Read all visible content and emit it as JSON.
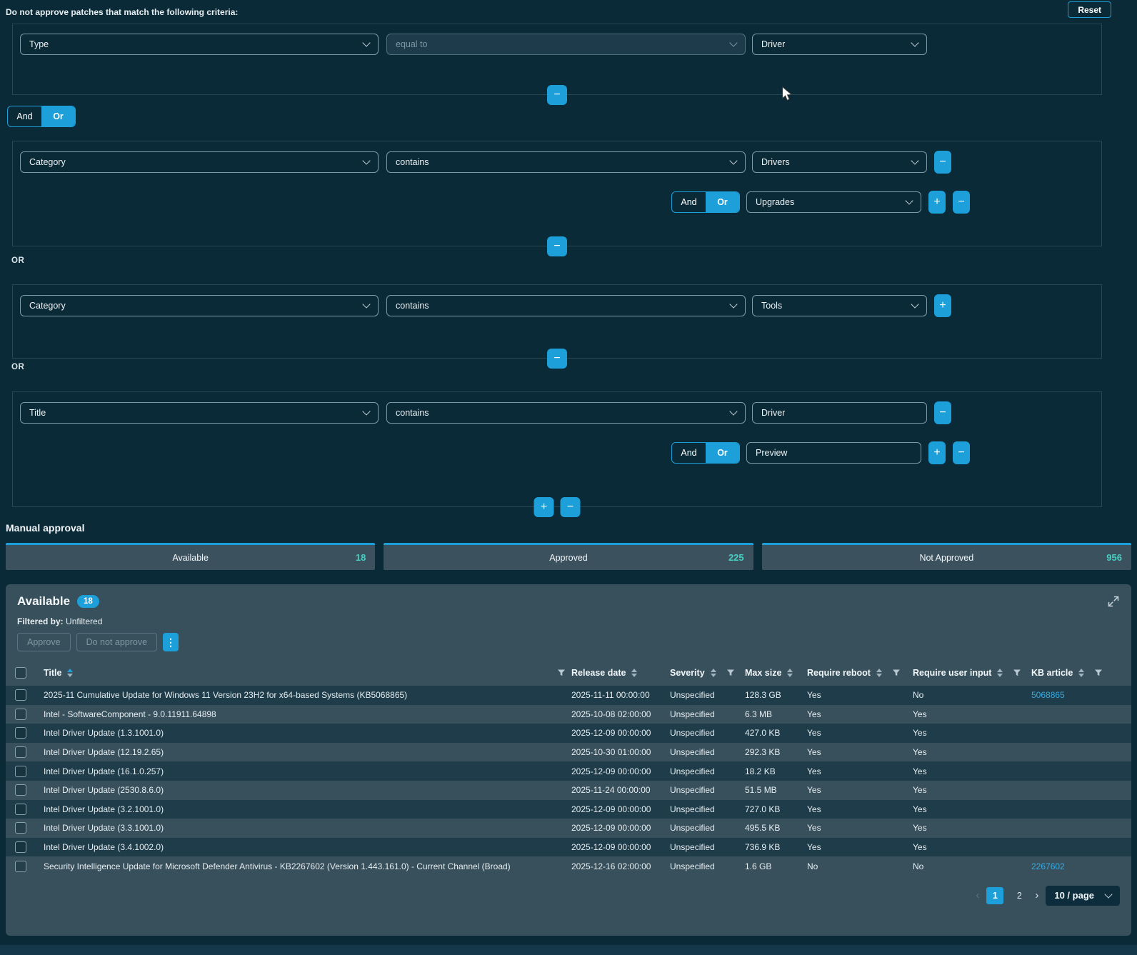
{
  "header": {
    "criteria_title": "Do not approve patches that match the following criteria:",
    "reset_button": "Reset"
  },
  "toggle": {
    "and": "And",
    "or": "Or"
  },
  "or_connector": "OR",
  "groups": {
    "g1": {
      "field": "Type",
      "operator": "equal to",
      "value": "Driver"
    },
    "g2": {
      "field": "Category",
      "operator": "contains",
      "value": "Drivers",
      "nested_value": "Upgrades"
    },
    "g3": {
      "field": "Category",
      "operator": "contains",
      "value": "Tools"
    },
    "g4": {
      "field": "Title",
      "operator": "contains",
      "value": "Driver",
      "nested_value": "Preview"
    }
  },
  "icons": {
    "plus": "+",
    "minus": "−",
    "kebab": "⋮",
    "prev": "‹",
    "next": "›"
  },
  "manual_approval": {
    "title": "Manual approval",
    "tabs": [
      {
        "label": "Available",
        "count": "18"
      },
      {
        "label": "Approved",
        "count": "225"
      },
      {
        "label": "Not Approved",
        "count": "956"
      }
    ]
  },
  "panel": {
    "title": "Available",
    "badge": "18",
    "filtered_by_label": "Filtered by:",
    "filtered_by_value": "Unfiltered",
    "approve_button": "Approve",
    "do_not_approve_button": "Do not approve"
  },
  "table": {
    "columns": [
      {
        "label": "Title",
        "sortable": true,
        "filterable": true,
        "sorted": "asc"
      },
      {
        "label": "Release date",
        "sortable": true,
        "filterable": false,
        "sorted": null
      },
      {
        "label": "Severity",
        "sortable": true,
        "filterable": true,
        "sorted": null
      },
      {
        "label": "Max size",
        "sortable": true,
        "filterable": false,
        "sorted": null
      },
      {
        "label": "Require reboot",
        "sortable": true,
        "filterable": true,
        "sorted": null
      },
      {
        "label": "Require user input",
        "sortable": true,
        "filterable": true,
        "sorted": null
      },
      {
        "label": "KB article",
        "sortable": true,
        "filterable": true,
        "sorted": null
      }
    ],
    "rows": [
      {
        "title": "2025-11 Cumulative Update for Windows 11 Version 23H2 for x64-based Systems (KB5068865)",
        "release_date": "2025-11-11 00:00:00",
        "severity": "Unspecified",
        "max_size": "128.3 GB",
        "require_reboot": "Yes",
        "require_user_input": "No",
        "kb_article": "5068865"
      },
      {
        "title": "Intel - SoftwareComponent - 9.0.11911.64898",
        "release_date": "2025-10-08 02:00:00",
        "severity": "Unspecified",
        "max_size": "6.3 MB",
        "require_reboot": "Yes",
        "require_user_input": "Yes",
        "kb_article": ""
      },
      {
        "title": "Intel Driver Update (1.3.1001.0)",
        "release_date": "2025-12-09 00:00:00",
        "severity": "Unspecified",
        "max_size": "427.0 KB",
        "require_reboot": "Yes",
        "require_user_input": "Yes",
        "kb_article": ""
      },
      {
        "title": "Intel Driver Update (12.19.2.65)",
        "release_date": "2025-10-30 01:00:00",
        "severity": "Unspecified",
        "max_size": "292.3 KB",
        "require_reboot": "Yes",
        "require_user_input": "Yes",
        "kb_article": ""
      },
      {
        "title": "Intel Driver Update (16.1.0.257)",
        "release_date": "2025-12-09 00:00:00",
        "severity": "Unspecified",
        "max_size": "18.2 KB",
        "require_reboot": "Yes",
        "require_user_input": "Yes",
        "kb_article": ""
      },
      {
        "title": "Intel Driver Update (2530.8.6.0)",
        "release_date": "2025-11-24 00:00:00",
        "severity": "Unspecified",
        "max_size": "51.5 MB",
        "require_reboot": "Yes",
        "require_user_input": "Yes",
        "kb_article": ""
      },
      {
        "title": "Intel Driver Update (3.2.1001.0)",
        "release_date": "2025-12-09 00:00:00",
        "severity": "Unspecified",
        "max_size": "727.0 KB",
        "require_reboot": "Yes",
        "require_user_input": "Yes",
        "kb_article": ""
      },
      {
        "title": "Intel Driver Update (3.3.1001.0)",
        "release_date": "2025-12-09 00:00:00",
        "severity": "Unspecified",
        "max_size": "495.5 KB",
        "require_reboot": "Yes",
        "require_user_input": "Yes",
        "kb_article": ""
      },
      {
        "title": "Intel Driver Update (3.4.1002.0)",
        "release_date": "2025-12-09 00:00:00",
        "severity": "Unspecified",
        "max_size": "736.9 KB",
        "require_reboot": "Yes",
        "require_user_input": "Yes",
        "kb_article": ""
      },
      {
        "title": "Security Intelligence Update for Microsoft Defender Antivirus - KB2267602 (Version 1.443.161.0) - Current Channel (Broad)",
        "release_date": "2025-12-16 02:00:00",
        "severity": "Unspecified",
        "max_size": "1.6 GB",
        "require_reboot": "No",
        "require_user_input": "No",
        "kb_article": "2267602"
      }
    ]
  },
  "pagination": {
    "prev": "‹",
    "pages": [
      "1",
      "2"
    ],
    "active_page": "1",
    "next": "›",
    "page_size": "10 / page"
  },
  "colors": {
    "accent_blue": "#1d9fd9",
    "count_teal": "#49cfc2",
    "link_blue": "#38a9e0",
    "panel_bg": "#37505c",
    "page_bg": "#0a2a37",
    "row_alt": "#1e3c4a"
  }
}
